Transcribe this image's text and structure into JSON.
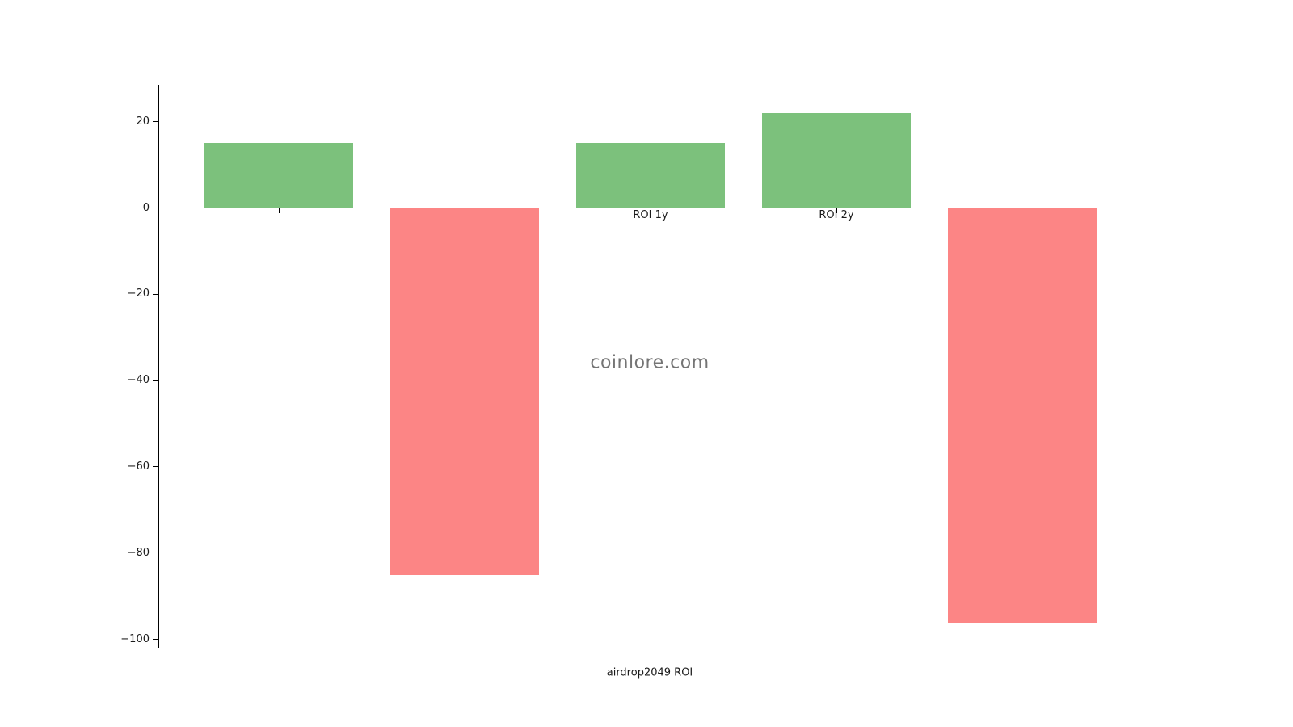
{
  "watermark": "coinlore.com",
  "chart_data": {
    "type": "bar",
    "title": "airdrop2049 ROI",
    "categories": [
      "",
      "",
      "ROI 1y",
      "ROI 2y",
      ""
    ],
    "values": [
      15,
      -85,
      15,
      22,
      -96
    ],
    "series": [
      {
        "name": "airdrop2049 ROI",
        "values": [
          15,
          -85,
          15,
          22,
          -96
        ]
      }
    ],
    "yticks": [
      20,
      0,
      -20,
      -40,
      -60,
      -80,
      -100
    ],
    "ytick_labels": [
      "20",
      "0",
      "−20",
      "−40",
      "−60",
      "−80",
      "−100"
    ],
    "ylim": [
      -102,
      28.5
    ],
    "xlabel": "",
    "ylabel": "",
    "grid": false,
    "legend_position": "none",
    "positive_color": "#7CC17C",
    "negative_color": "#FC8585",
    "axis_color": "#000000",
    "text_color": "#1a1a1a",
    "watermark": "coinlore.com",
    "watermark_color": "#757575"
  }
}
